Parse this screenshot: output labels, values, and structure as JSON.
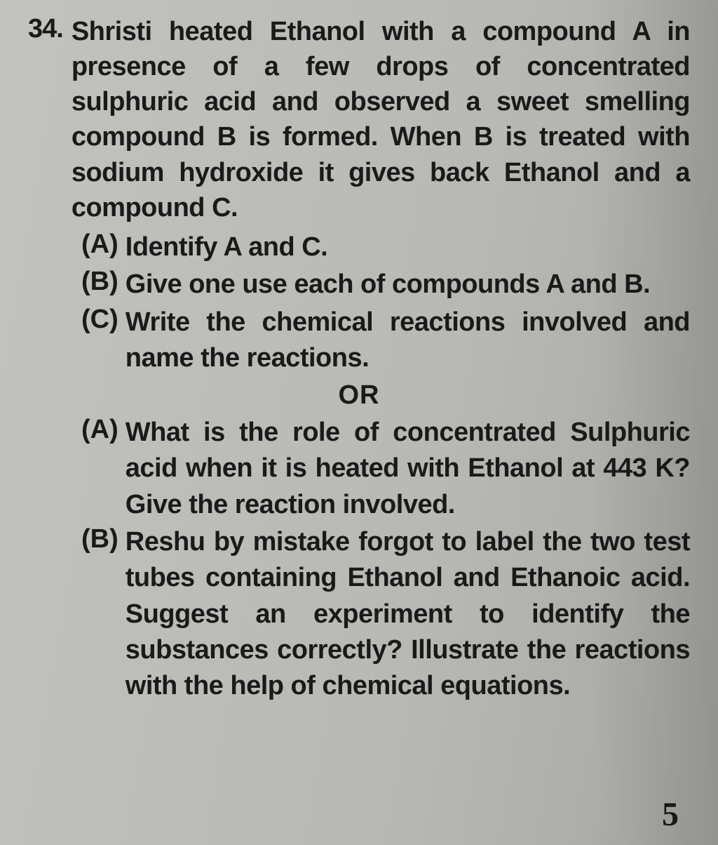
{
  "question": {
    "number": "34.",
    "stem": "Shristi heated Ethanol with a compound A in presence of a few drops of concentrated sulphuric acid and observed a sweet smelling compound B is formed. When B is treated with sodium hydroxide it gives back Ethanol and a compound C.",
    "parts1": [
      {
        "label": "(A)",
        "text": "Identify A and C."
      },
      {
        "label": "(B)",
        "text": "Give one use each of compounds A and B."
      },
      {
        "label": "(C)",
        "text": "Write the chemical reactions involved and name the reactions."
      }
    ],
    "or": "OR",
    "parts2": [
      {
        "label": "(A)",
        "text": "What is the role of concentrated Sulphuric acid when it is heated with Ethanol at 443 K? Give the reaction involved."
      },
      {
        "label": "(B)",
        "text": "Reshu by mistake forgot to label the two test tubes containing Ethanol and Ethanoic acid. Suggest an experiment to identify the substances correctly? Illustrate the reactions with the help of chemical equations."
      }
    ],
    "marks": "5"
  },
  "style": {
    "background_color": "#bcbcb8",
    "text_color": "#1a1a1a",
    "body_fontsize": 38,
    "marks_fontsize": 48,
    "font_weight": 900
  }
}
